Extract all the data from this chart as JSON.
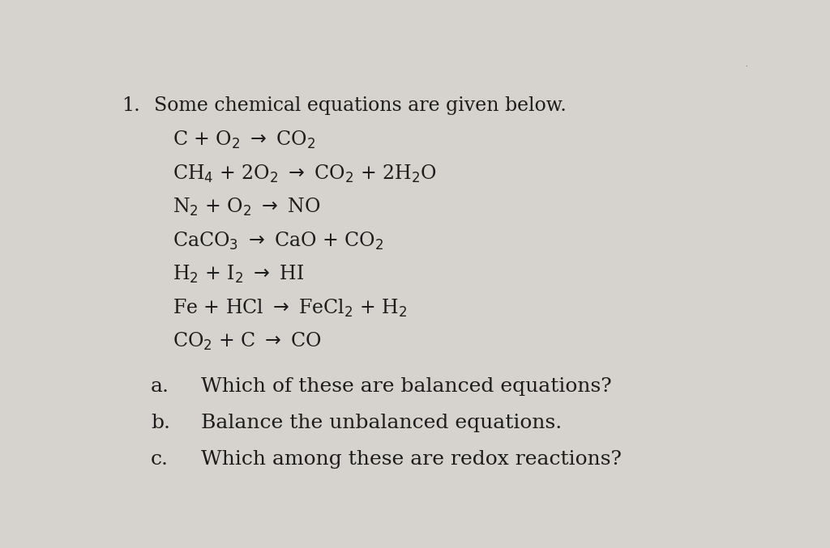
{
  "bg_color": "#c8c5c0",
  "paper_color": "#d6d3ce",
  "title_number": "1.",
  "title_text": "Some chemical equations are given below.",
  "equations": [
    "C + O$_2$ $\\rightarrow$ CO$_2$",
    "CH$_4$ + 2O$_2$ $\\rightarrow$ CO$_2$ + 2H$_2$O",
    "N$_2$ + O$_2$ $\\rightarrow$ NO",
    "CaCO$_3$ $\\rightarrow$ CaO + CO$_2$",
    "H$_2$ + I$_2$ $\\rightarrow$ HI",
    "Fe + HCl $\\rightarrow$ FeCl$_2$ + H$_2$",
    "CO$_2$ + C $\\rightarrow$ CO"
  ],
  "questions": [
    {
      "label": "a.",
      "text": "Which of these are balanced equations?"
    },
    {
      "label": "b.",
      "text": "Balance the unbalanced equations."
    },
    {
      "label": "c.",
      "text": "Which among these are redox reactions?"
    }
  ],
  "title_fontsize": 17,
  "eq_fontsize": 17,
  "q_fontsize": 18,
  "text_color": "#1c1c1c",
  "dark_bar_color": "#555555",
  "mid_bar_color": "#888888"
}
